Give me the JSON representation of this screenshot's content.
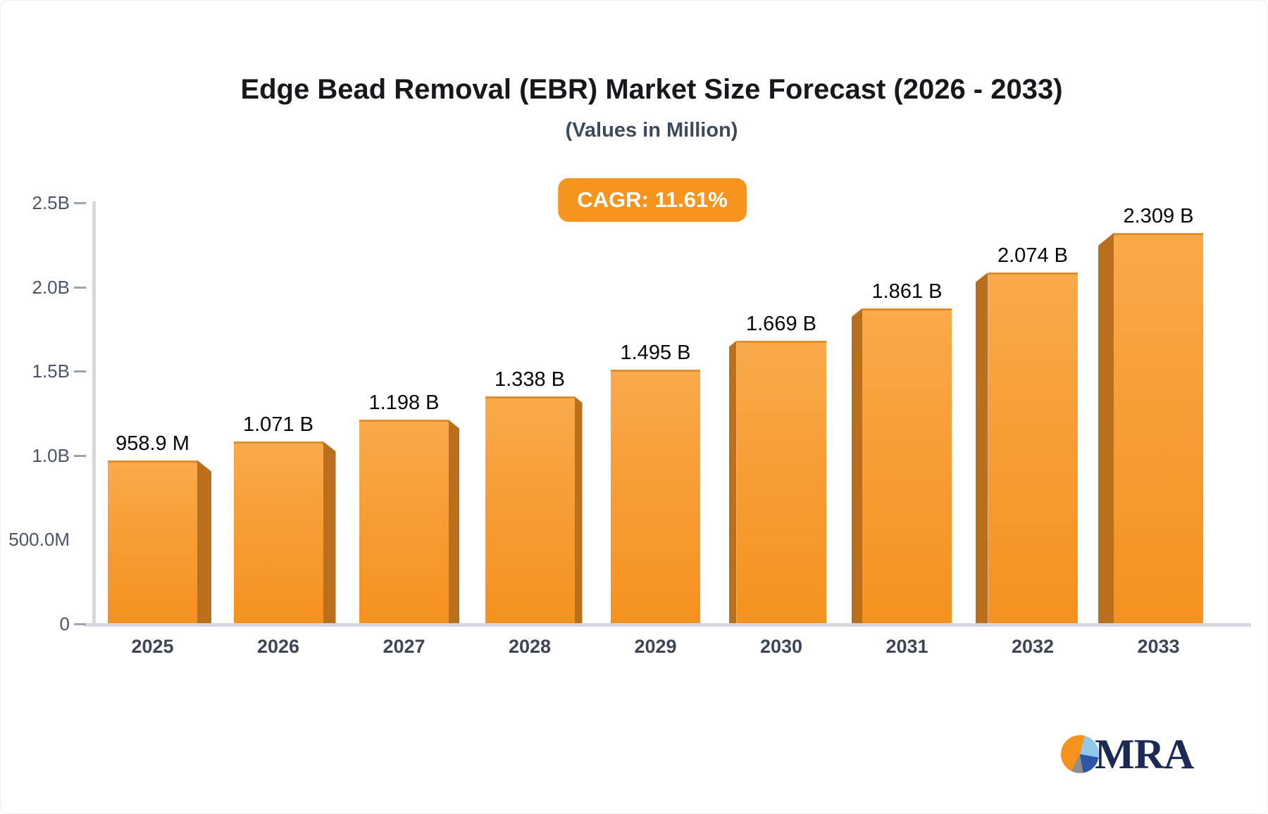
{
  "header": {
    "title": "Edge Bead Removal (EBR) Market Size Forecast (2026 - 2033)",
    "subtitle": "(Values in Million)",
    "cagr_label": "CAGR: 11.61%"
  },
  "chart_data": {
    "type": "bar",
    "title": "Edge Bead Removal (EBR) Market Size Forecast (2026 - 2033)",
    "subtitle": "(Values in Million)",
    "cagr_percent": "11.61%",
    "categories": [
      "2025",
      "2026",
      "2027",
      "2028",
      "2029",
      "2030",
      "2031",
      "2032",
      "2033"
    ],
    "values_billion": [
      0.9589,
      1.071,
      1.198,
      1.338,
      1.495,
      1.669,
      1.861,
      2.074,
      2.309
    ],
    "bar_labels": [
      "958.9 M",
      "1.071 B",
      "1.198 B",
      "1.338 B",
      "1.495 B",
      "1.669 B",
      "1.861 B",
      "2.074 B",
      "2.309 B"
    ],
    "xlabel": "",
    "ylabel": "",
    "ylim": [
      0,
      2.5
    ],
    "grid": false,
    "legend": "none",
    "y_ticks": [
      {
        "label": "2.5B",
        "value": 2.5,
        "dash": true
      },
      {
        "label": "2.0B",
        "value": 2.0,
        "dash": true
      },
      {
        "label": "1.5B",
        "value": 1.5,
        "dash": true
      },
      {
        "label": "1.0B",
        "value": 1.0,
        "dash": true
      },
      {
        "label": "500.0M",
        "value": 0.5,
        "dash": false
      },
      {
        "label": "0",
        "value": 0,
        "dash": true
      }
    ],
    "colors": {
      "bar_top": "#f9aa4b",
      "bar_bottom": "#f5921f",
      "bar_side": "#ba6f1d",
      "badge": "#f6941d",
      "axis": "#d4d8dd"
    }
  },
  "branding": {
    "logo_text": "MRA",
    "pie_colors": [
      "#f6921e",
      "#92c8e9",
      "#2d57a5",
      "#8e8e8e"
    ]
  }
}
